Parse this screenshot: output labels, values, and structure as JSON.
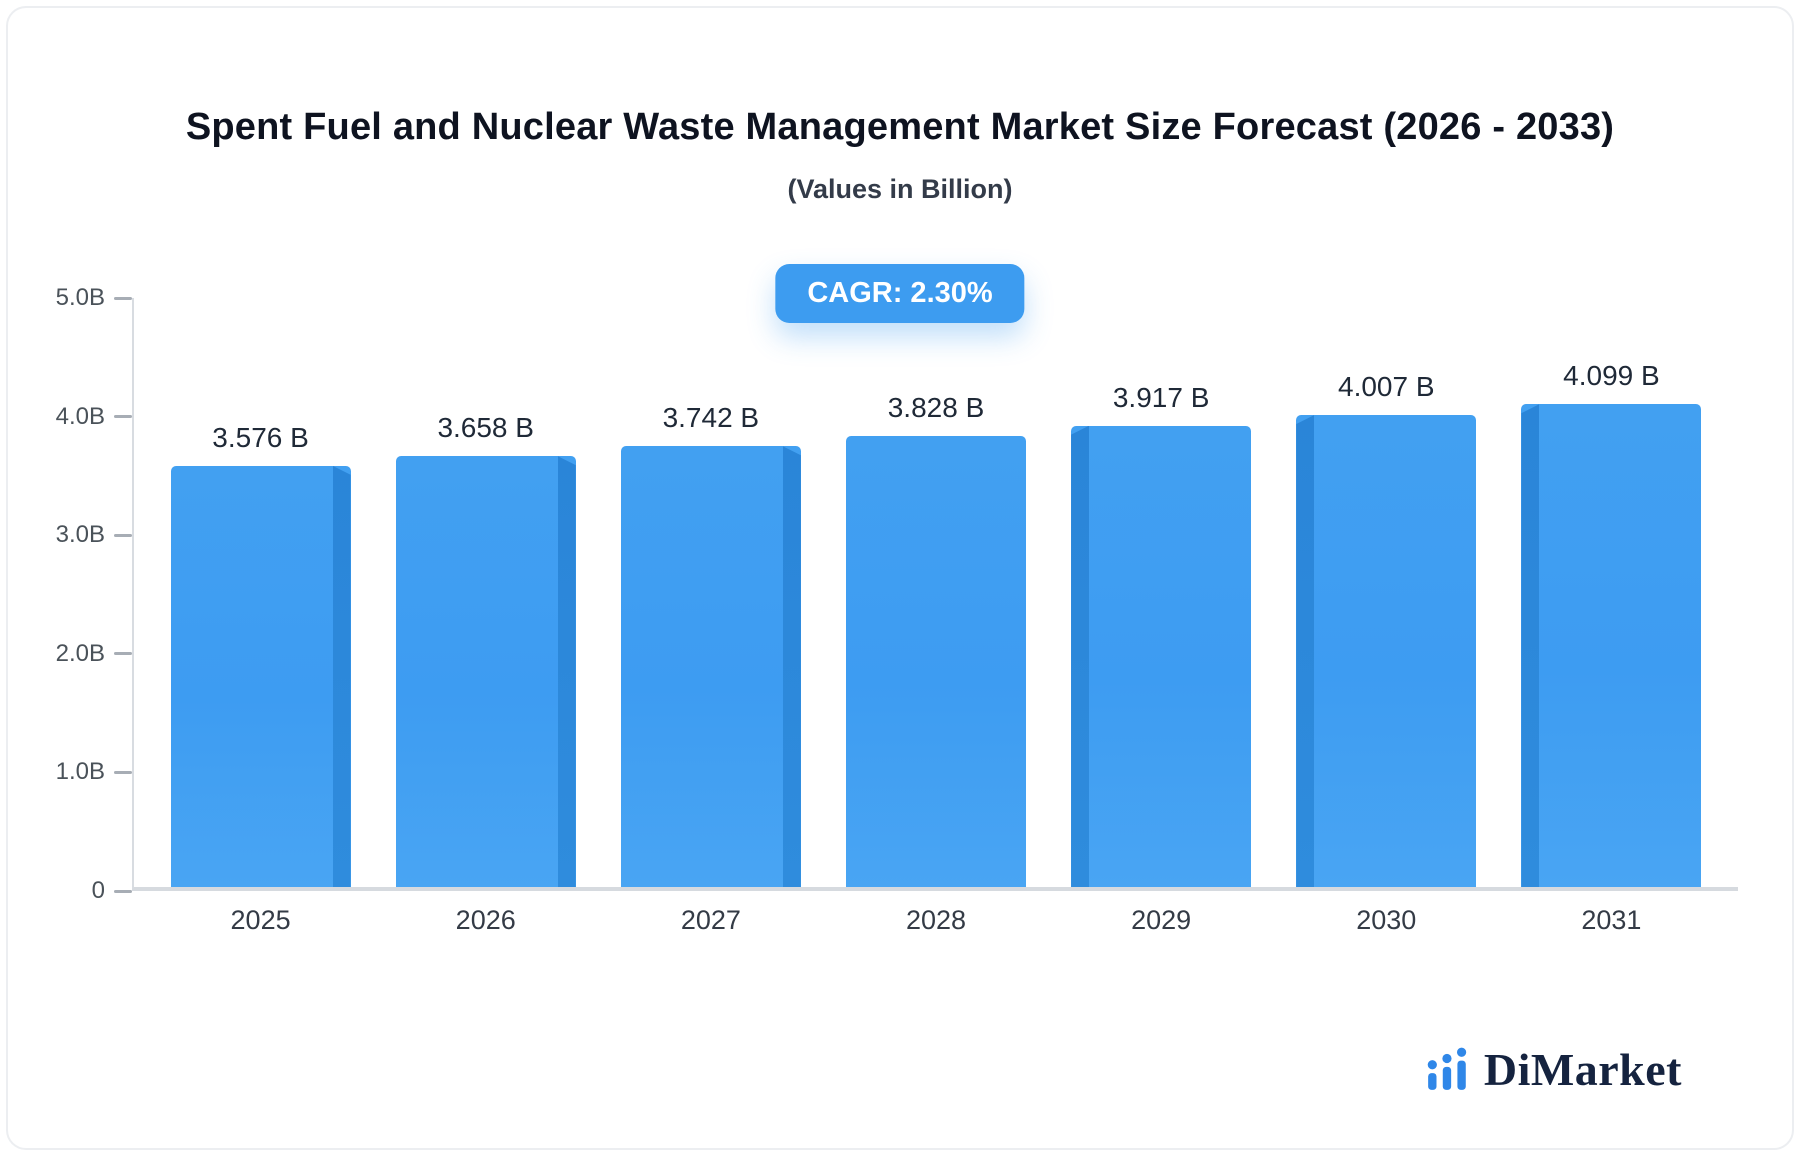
{
  "header": {
    "title": "Spent Fuel and Nuclear Waste Management Market Size Forecast (2026 - 2033)",
    "subtitle": "(Values in Billion)",
    "cagr_badge": "CAGR: 2.30%"
  },
  "branding": {
    "logo_text": "DiMarket",
    "logo_icon": "bar-chart-dots-icon"
  },
  "colors": {
    "bar_face": "#42A0F1",
    "bar_side": "#2A85D8",
    "badge_bg": "#3D9CF0",
    "logo_blue": "#2F87E8",
    "axis_line": "#D8DCE1",
    "title_text": "#0E1320"
  },
  "chart_data": {
    "type": "bar",
    "title": "Spent Fuel and Nuclear Waste Management Market Size Forecast (2026 - 2033)",
    "subtitle": "(Values in Billion)",
    "annotations": [
      "CAGR: 2.30%"
    ],
    "categories": [
      "2025",
      "2026",
      "2027",
      "2028",
      "2029",
      "2030",
      "2031"
    ],
    "values": [
      3.576,
      3.658,
      3.742,
      3.828,
      3.917,
      4.007,
      4.099
    ],
    "value_labels": [
      "3.576 B",
      "3.658 B",
      "3.742 B",
      "3.828 B",
      "3.917 B",
      "4.007 B",
      "4.099 B"
    ],
    "unit": "Billion",
    "xlabel": "",
    "ylabel": "",
    "ylim": [
      0,
      5
    ],
    "yticks": [
      {
        "value": 5,
        "label": "5.0B"
      },
      {
        "value": 4,
        "label": "4.0B"
      },
      {
        "value": 3,
        "label": "3.0B"
      },
      {
        "value": 2,
        "label": "2.0B"
      },
      {
        "value": 1,
        "label": "1.0B"
      },
      {
        "value": 0,
        "label": "0"
      }
    ],
    "grid": false,
    "legend": false
  }
}
